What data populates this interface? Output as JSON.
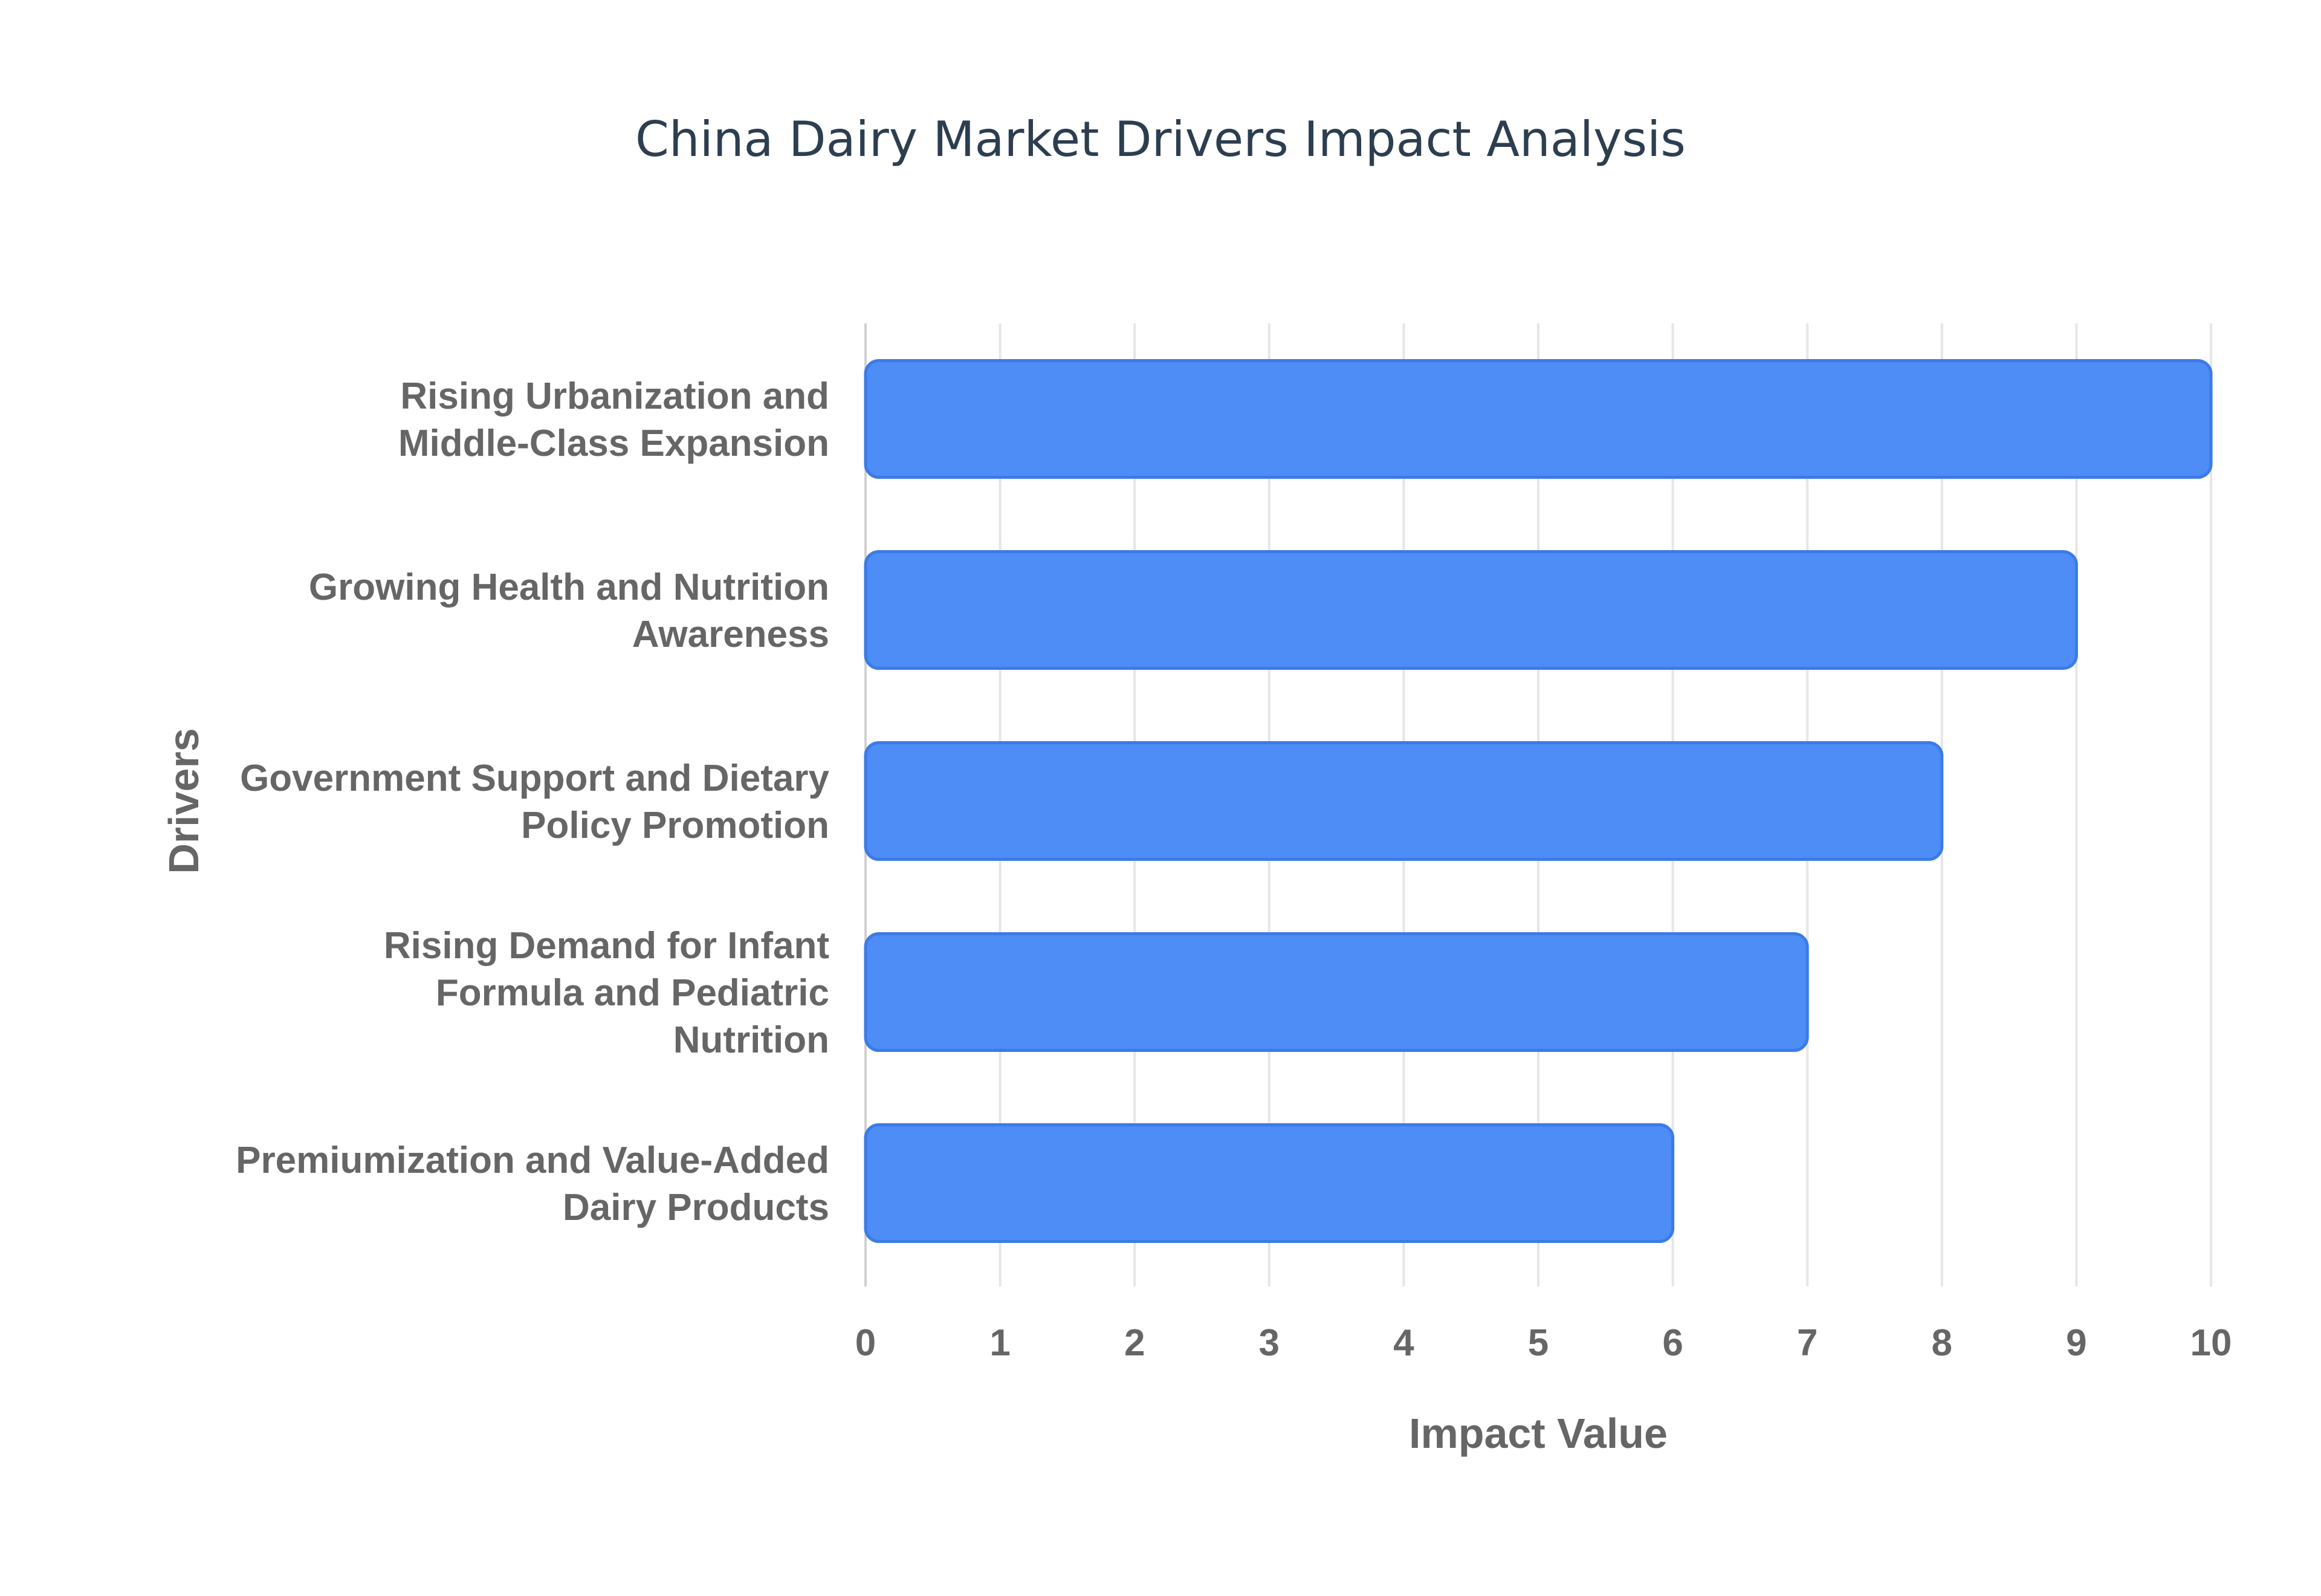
{
  "chart_data": {
    "type": "bar",
    "orientation": "horizontal",
    "title": "China Dairy Market Drivers Impact Analysis",
    "xlabel": "Impact Value",
    "ylabel": "Drivers",
    "categories": [
      [
        "Rising Urbanization and",
        "Middle-Class Expansion"
      ],
      [
        "Growing Health and Nutrition",
        "Awareness"
      ],
      [
        "Government Support and Dietary",
        "Policy Promotion"
      ],
      [
        "Rising Demand for Infant",
        "Formula and Pediatric",
        "Nutrition"
      ],
      [
        "Premiumization and Value-Added",
        "Dairy Products"
      ]
    ],
    "values": [
      10,
      9,
      8,
      7,
      6
    ],
    "xlim": [
      0,
      10
    ],
    "x_ticks": [
      "0",
      "1",
      "2",
      "3",
      "4",
      "5",
      "6",
      "7",
      "8",
      "9",
      "10"
    ],
    "grid": true,
    "legend": "none",
    "colors": {
      "bar_fill": "#4e8cf6",
      "bar_stroke": "#3b7be8",
      "title": "#2c3e50",
      "label": "#666666",
      "grid": "#e6e6e6"
    }
  }
}
